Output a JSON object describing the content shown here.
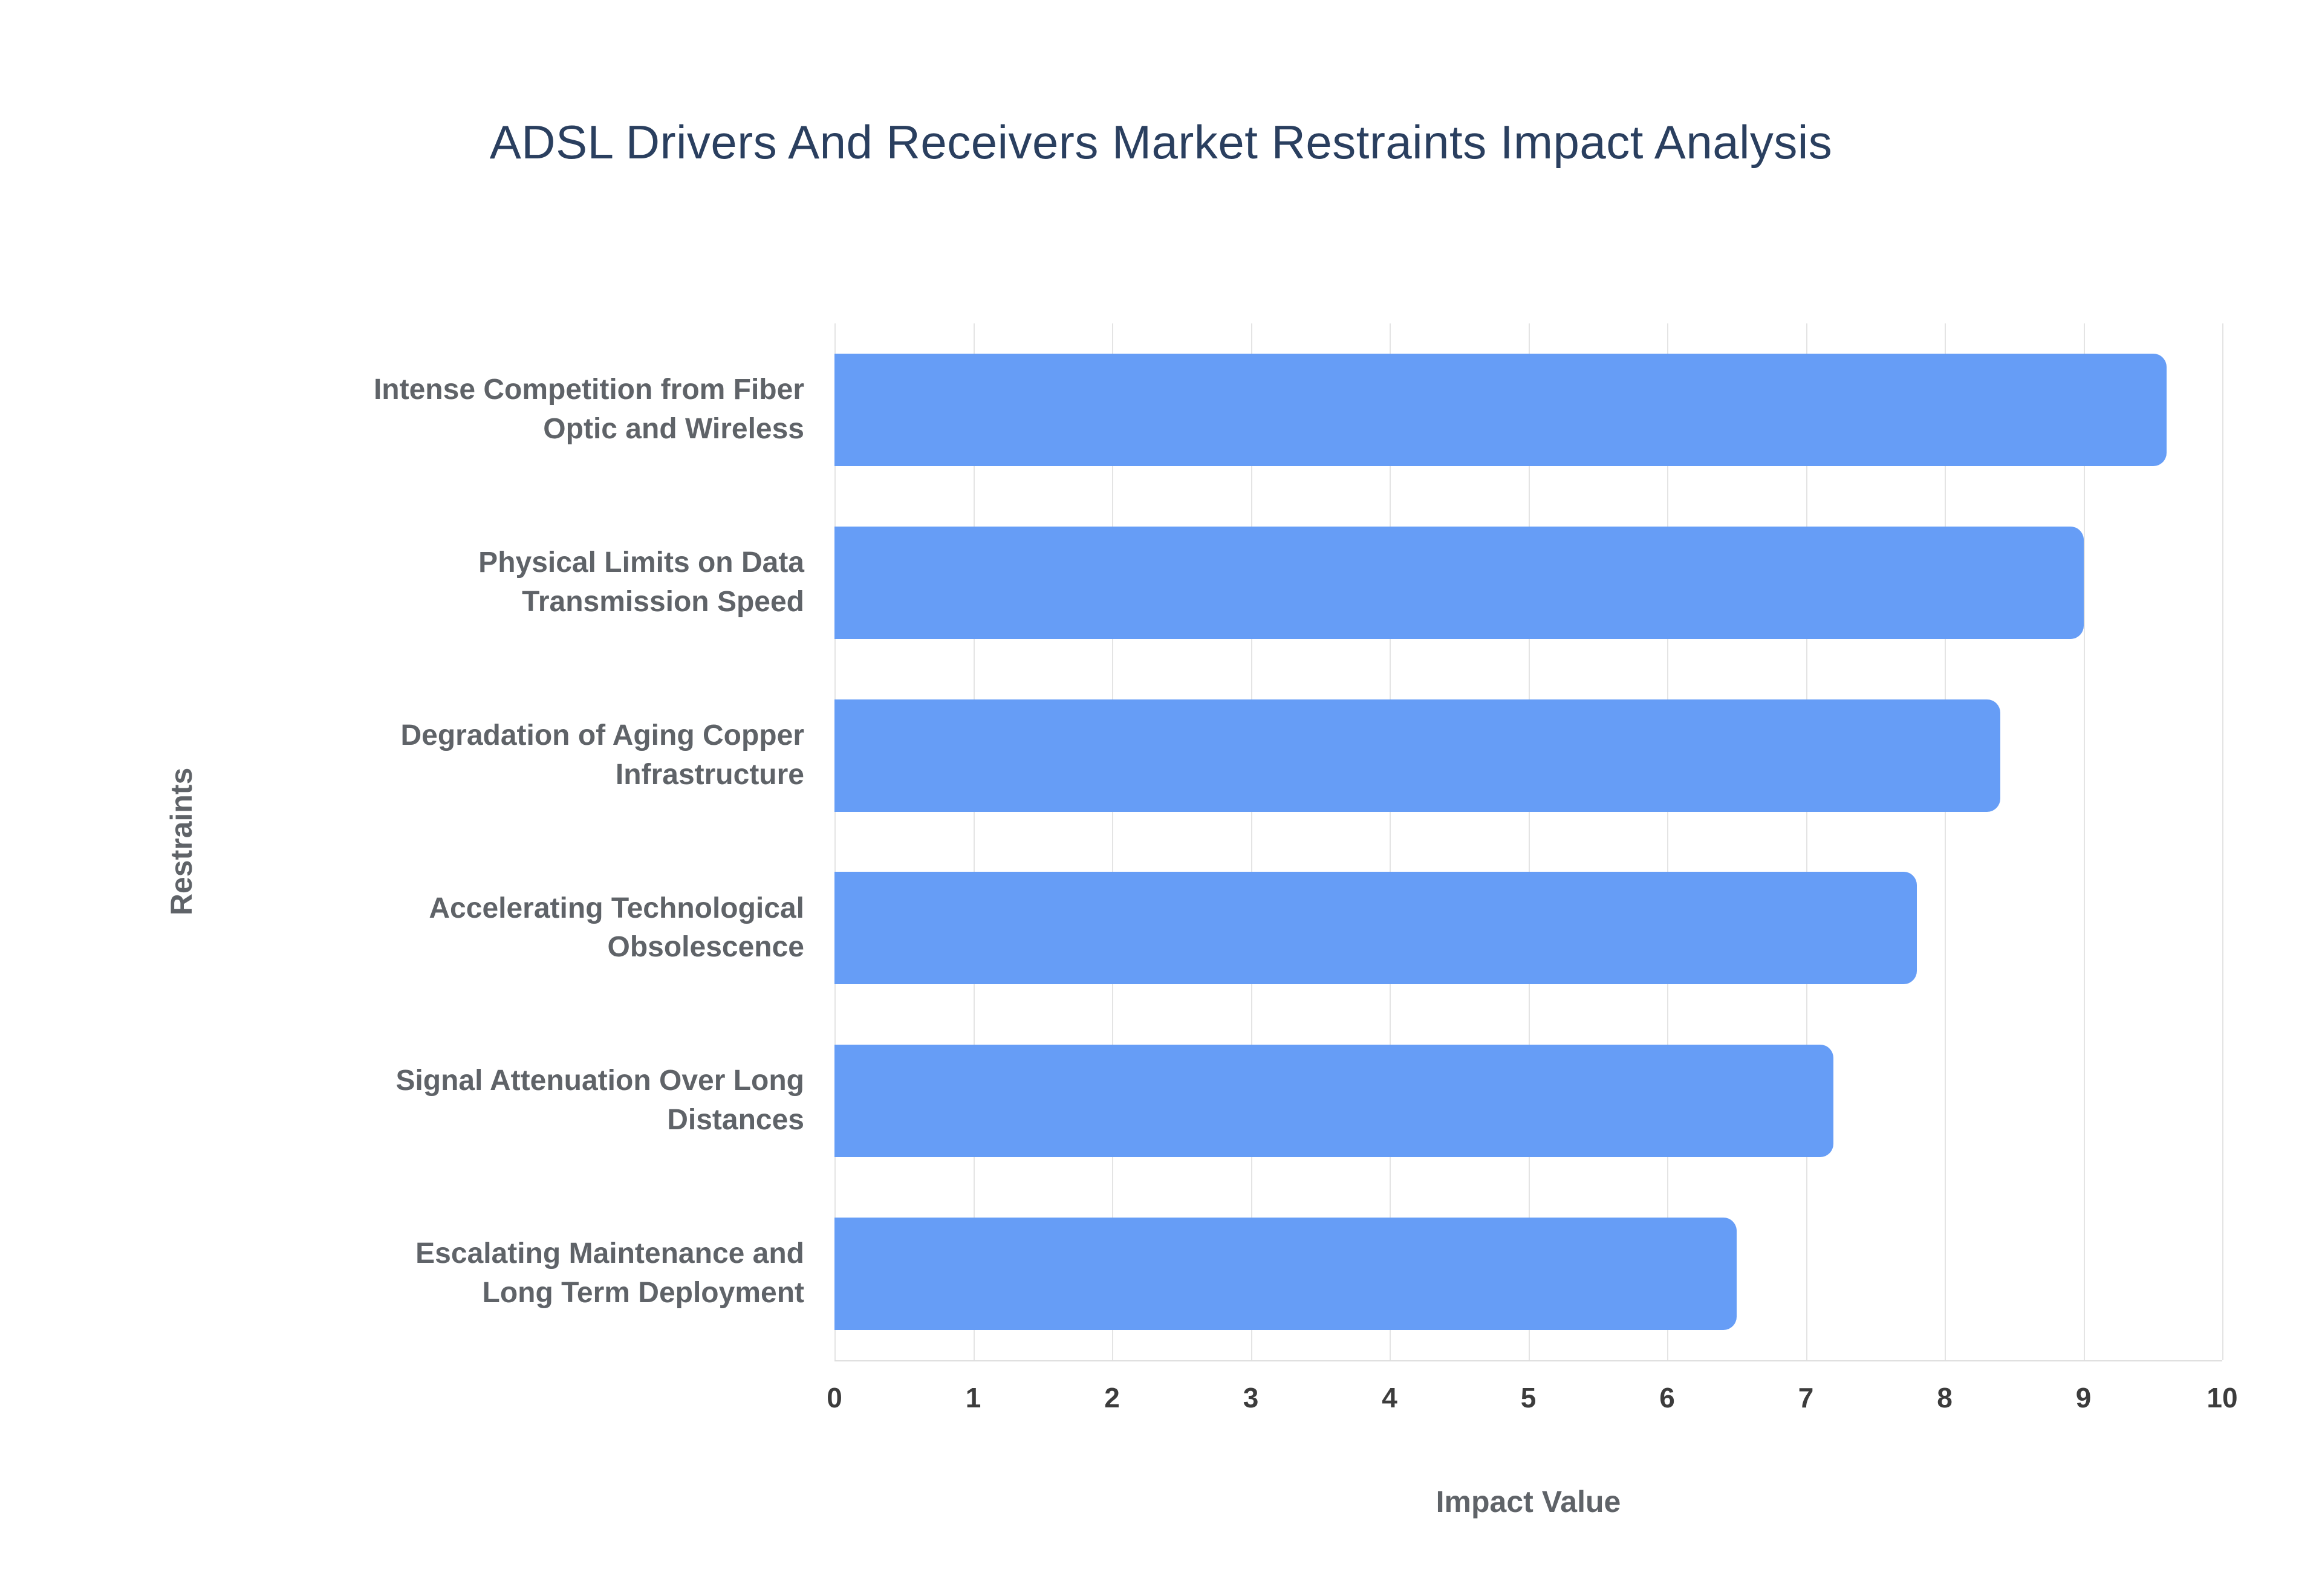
{
  "title": "ADSL Drivers And Receivers Market Restraints Impact Analysis",
  "colors": {
    "bar": "#669DF6",
    "title": "#2a3f5f",
    "axis_title": "#5f6368",
    "category_label": "#5f6368",
    "tick_label": "#3c3c3c",
    "gridline": "#e4e4e4"
  },
  "chart_data": {
    "type": "bar",
    "orientation": "horizontal",
    "title": "ADSL Drivers And Receivers Market Restraints Impact Analysis",
    "categories": [
      "Intense Competition from Fiber\nOptic and Wireless",
      "Physical Limits on Data\nTransmission Speed",
      "Degradation of Aging Copper\nInfrastructure",
      "Accelerating Technological\nObsolescence",
      "Signal Attenuation Over Long\nDistances",
      "Escalating Maintenance and\nLong Term Deployment"
    ],
    "values": [
      9.6,
      9.0,
      8.4,
      7.8,
      7.2,
      6.5
    ],
    "xlabel": "Impact Value",
    "ylabel": "Restraints",
    "xlim": [
      0,
      10
    ],
    "xticks": [
      0,
      1,
      2,
      3,
      4,
      5,
      6,
      7,
      8,
      9,
      10
    ],
    "grid": true,
    "legend": false
  }
}
